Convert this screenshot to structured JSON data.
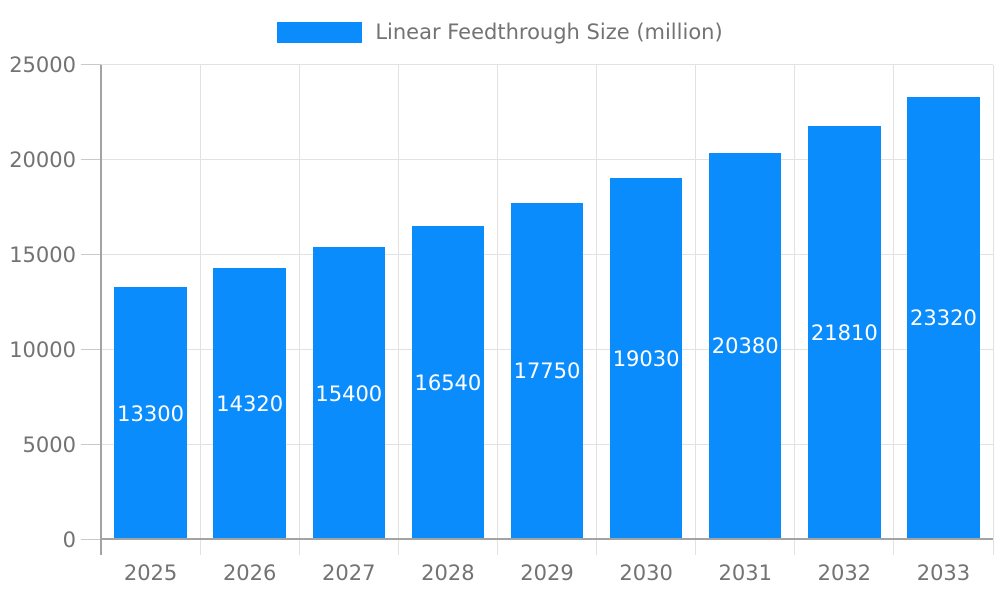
{
  "legend": {
    "label": "Linear Feedthrough Size (million)"
  },
  "chart_data": {
    "type": "bar",
    "title": "Linear Feedthrough Size (million)",
    "categories": [
      "2025",
      "2026",
      "2027",
      "2028",
      "2029",
      "2030",
      "2031",
      "2032",
      "2033"
    ],
    "values": [
      13300,
      14320,
      15400,
      16540,
      17750,
      19030,
      20380,
      21810,
      23320
    ],
    "series": [
      {
        "name": "Linear Feedthrough Size (million)",
        "values": [
          13300,
          14320,
          15400,
          16540,
          17750,
          19030,
          20380,
          21810,
          23320
        ]
      }
    ],
    "xlabel": "",
    "ylabel": "",
    "ylim": [
      0,
      25000
    ],
    "yticks": [
      0,
      5000,
      10000,
      15000,
      20000,
      25000
    ],
    "grid": true,
    "legend_position": "top",
    "bar_labels_inside": true,
    "colors": {
      "bar": "#0a8cfc",
      "bar_label": "#ffffff",
      "grid": "#e2e2e2",
      "axis": "#a3a3a3",
      "tick": "#c9c9c9",
      "text": "#737373",
      "background": "#ffffff"
    }
  }
}
